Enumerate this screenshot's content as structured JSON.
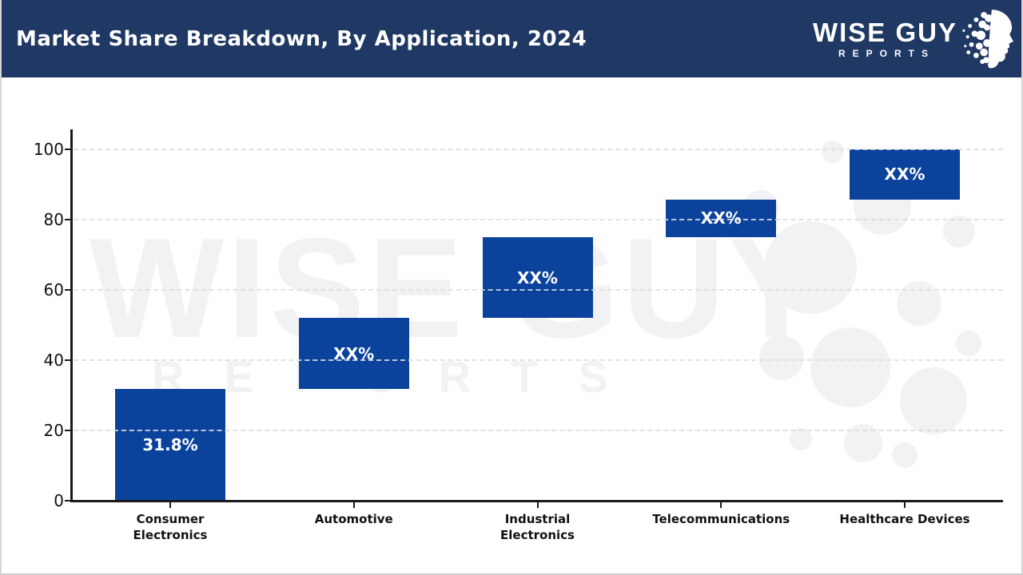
{
  "header": {
    "title": "Market Share Breakdown, By Application, 2024",
    "logo": {
      "line1": "WISE GUY",
      "line2": "REPORTS"
    }
  },
  "watermark": {
    "line1": "WISE GUY",
    "line2": "REPORTS"
  },
  "colors": {
    "header_bg": "#1f3864",
    "bar": "#0b439c",
    "grid": "#dcdcdc",
    "axis": "#1a1a1a",
    "bar_label_text": "#ffffff",
    "watermark": "#f2f2f4"
  },
  "chart_data": {
    "type": "bar",
    "subtype": "waterfall",
    "title": "Market Share Breakdown, By Application, 2024",
    "xlabel": "",
    "ylabel": "",
    "ylim": [
      0,
      105
    ],
    "yticks": [
      0,
      20,
      40,
      60,
      80,
      100
    ],
    "grid": "horizontal-dashed",
    "legend": "none",
    "categories": [
      "Consumer Electronics",
      "Automotive",
      "Industrial Electronics",
      "Telecommunications",
      "Healthcare Devices"
    ],
    "tick_labels": [
      "Consumer\nElectronics",
      "Automotive",
      "Industrial\nElectronics",
      "Telecommunications",
      "Healthcare Devices"
    ],
    "series": [
      {
        "category": "Consumer Electronics",
        "start": 0,
        "end": 31.8,
        "value_label": "31.8%"
      },
      {
        "category": "Automotive",
        "start": 31.8,
        "end": 52.0,
        "value_label": "XX%"
      },
      {
        "category": "Industrial Electronics",
        "start": 52.0,
        "end": 75.0,
        "value_label": "XX%"
      },
      {
        "category": "Telecommunications",
        "start": 75.0,
        "end": 85.7,
        "value_label": "XX%"
      },
      {
        "category": "Healthcare Devices",
        "start": 85.7,
        "end": 100.0,
        "value_label": "XX%"
      }
    ]
  }
}
